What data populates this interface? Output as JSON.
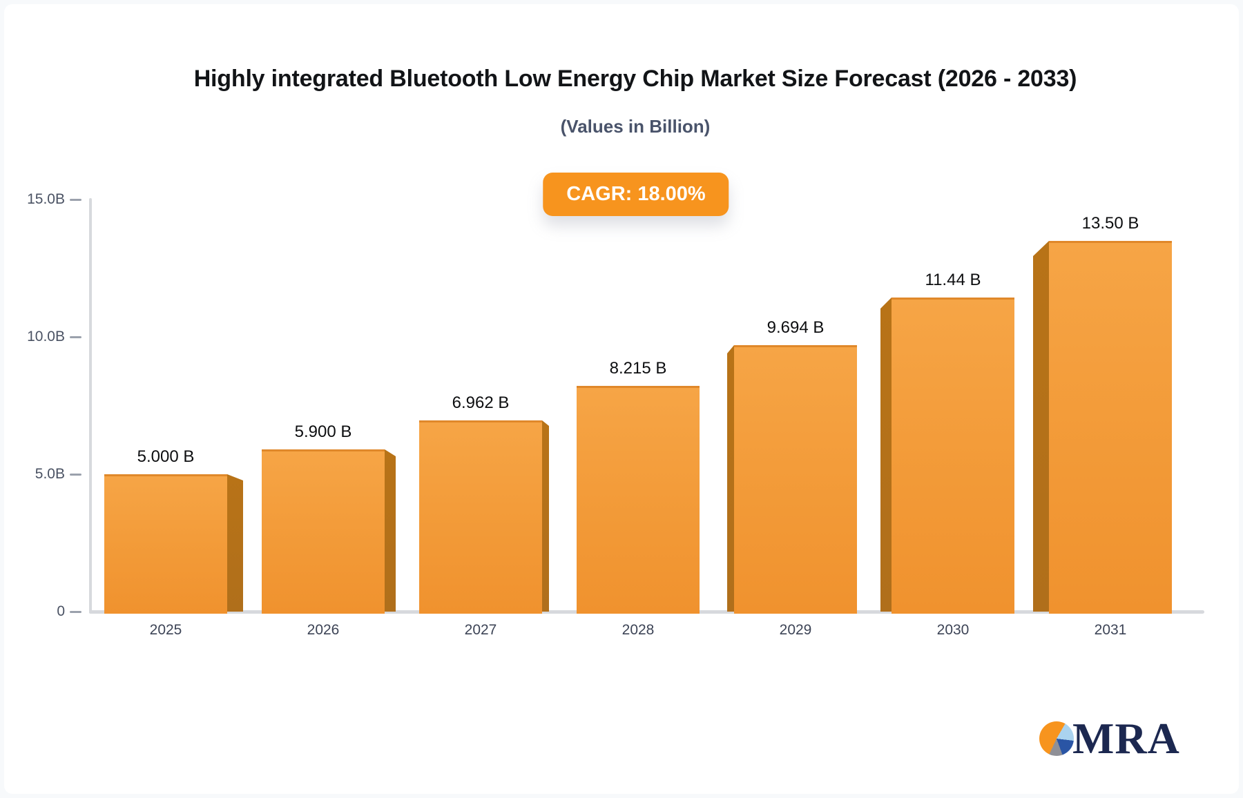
{
  "page": {
    "title": "Highly integrated Bluetooth Low Energy Chip Market Size Forecast (2026 - 2033)",
    "subtitle": "(Values in Billion)",
    "cagr_badge": "CAGR: 18.00%"
  },
  "brand": {
    "logo_text": "MRA",
    "pie_colors": [
      "#f7941e",
      "#aad3ef",
      "#2a55a5",
      "#8f9097"
    ]
  },
  "colors": {
    "accent_orange": "#f7941e",
    "bar_gradient_top": "#f6a546",
    "bar_gradient_bottom": "#f0922e",
    "bar_side_face": "#b06f1b",
    "axis_gray": "#d7d9dd",
    "tick_text": "#4a5263",
    "year_text": "#3d4456",
    "value_text": "#0d0e10",
    "title_text": "#121417",
    "subtitle_text": "#49536a",
    "logo_navy": "#1c2850"
  },
  "chart_data": {
    "type": "bar",
    "style": "3d-perspective-bars",
    "categories": [
      "2025",
      "2026",
      "2027",
      "2028",
      "2029",
      "2030",
      "2031"
    ],
    "values": [
      5.0,
      5.9,
      6.962,
      8.215,
      9.694,
      11.44,
      13.5
    ],
    "value_labels": [
      "5.000 B",
      "5.900 B",
      "6.962 B",
      "8.215 B",
      "9.694 B",
      "11.44 B",
      "13.50 B"
    ],
    "title": "Highly integrated Bluetooth Low Energy Chip Market Size Forecast (2026 - 2033)",
    "subtitle": "(Values in Billion)",
    "annotation": "CAGR: 18.00%",
    "xlabel": "",
    "ylabel": "",
    "ylim": [
      0,
      15
    ],
    "yticks": [
      {
        "value": 15,
        "label": "15.0B"
      },
      {
        "value": 10,
        "label": "10.0B"
      },
      {
        "value": 5,
        "label": "5.0B"
      },
      {
        "value": 0,
        "label": "0"
      }
    ],
    "grid": false,
    "legend": false
  }
}
